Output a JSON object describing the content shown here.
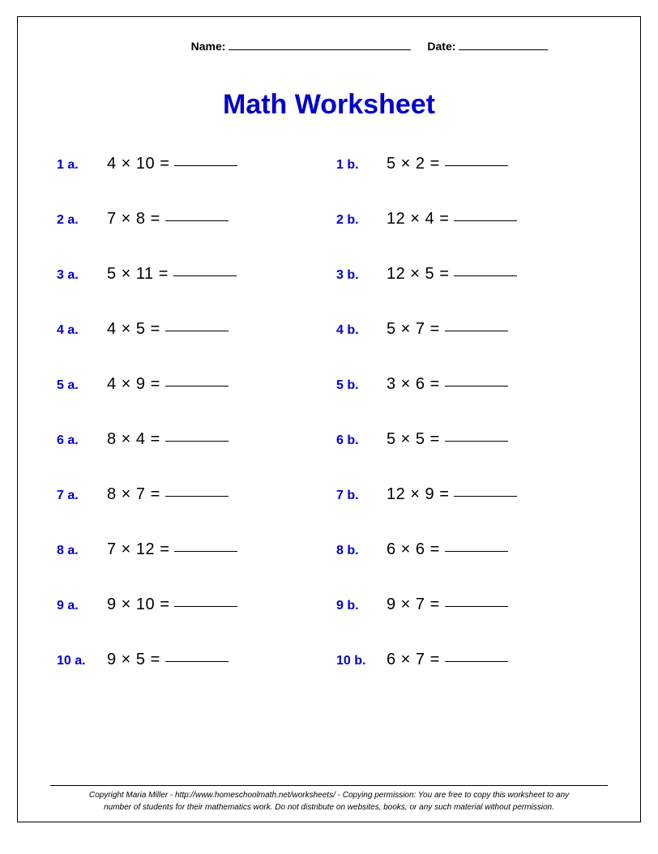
{
  "header": {
    "name_label": "Name:",
    "date_label": "Date:"
  },
  "title": "Math Worksheet",
  "colors": {
    "label": "#0000cc",
    "title": "#0000cc",
    "text": "#000000",
    "background": "#ffffff",
    "border": "#000000"
  },
  "typography": {
    "title_fontsize": 34,
    "label_fontsize": 16,
    "expr_fontsize": 20,
    "header_fontsize": 14,
    "footer_fontsize": 10
  },
  "problems": [
    {
      "label": "1 a.",
      "a": 4,
      "b": 10
    },
    {
      "label": "1 b.",
      "a": 5,
      "b": 2
    },
    {
      "label": "2 a.",
      "a": 7,
      "b": 8
    },
    {
      "label": "2 b.",
      "a": 12,
      "b": 4
    },
    {
      "label": "3 a.",
      "a": 5,
      "b": 11
    },
    {
      "label": "3 b.",
      "a": 12,
      "b": 5
    },
    {
      "label": "4 a.",
      "a": 4,
      "b": 5
    },
    {
      "label": "4 b.",
      "a": 5,
      "b": 7
    },
    {
      "label": "5 a.",
      "a": 4,
      "b": 9
    },
    {
      "label": "5 b.",
      "a": 3,
      "b": 6
    },
    {
      "label": "6 a.",
      "a": 8,
      "b": 4
    },
    {
      "label": "6 b.",
      "a": 5,
      "b": 5
    },
    {
      "label": "7 a.",
      "a": 8,
      "b": 7
    },
    {
      "label": "7 b.",
      "a": 12,
      "b": 9
    },
    {
      "label": "8 a.",
      "a": 7,
      "b": 12
    },
    {
      "label": "8 b.",
      "a": 6,
      "b": 6
    },
    {
      "label": "9 a.",
      "a": 9,
      "b": 10
    },
    {
      "label": "9 b.",
      "a": 9,
      "b": 7
    },
    {
      "label": "10 a.",
      "a": 9,
      "b": 5
    },
    {
      "label": "10 b.",
      "a": 6,
      "b": 7
    }
  ],
  "operator": "×",
  "equals": "=",
  "footer": {
    "line1": "Copyright Maria Miller - http://www.homeschoolmath.net/worksheets/ - Copying permission: You are free to copy this worksheet to any",
    "line2": "number of students for their mathematics work. Do not distribute on websites, books, or any such material without permission."
  }
}
